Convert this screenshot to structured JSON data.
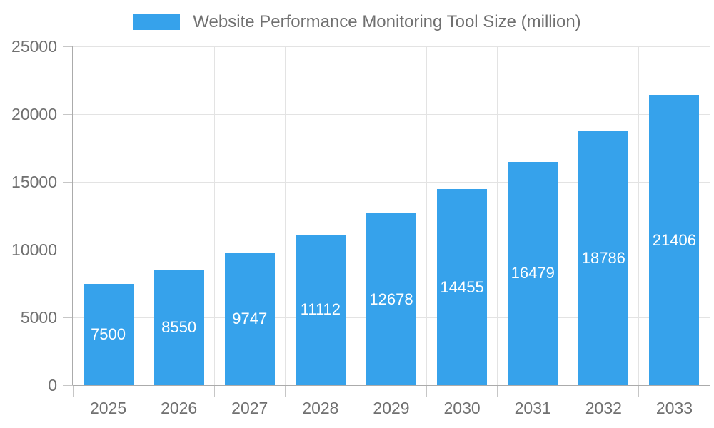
{
  "legend": {
    "label": "Website Performance Monitoring Tool Size (million)"
  },
  "chart_data": {
    "type": "bar",
    "title": "Website Performance Monitoring Tool Size (million)",
    "series_name": "Website Performance Monitoring Tool Size (million)",
    "categories": [
      "2025",
      "2026",
      "2027",
      "2028",
      "2029",
      "2030",
      "2031",
      "2032",
      "2033"
    ],
    "values": [
      7500,
      8550,
      9747,
      11112,
      12678,
      14455,
      16479,
      18786,
      21406
    ],
    "value_labels": [
      "7500",
      "8550",
      "9747",
      "11112",
      "12678",
      "14455",
      "16479",
      "18786",
      "21406"
    ],
    "xlabel": "",
    "ylabel": "",
    "ylim": [
      0,
      25000
    ],
    "yticks": [
      0,
      5000,
      10000,
      15000,
      20000,
      25000
    ],
    "ytick_labels": [
      "0",
      "5000",
      "10000",
      "15000",
      "20000",
      "25000"
    ],
    "grid": true,
    "legend_position": "top",
    "value_label_position": "inside-center",
    "colors": {
      "bar": "#36A2EB",
      "value_label": "#FFFFFF",
      "axis_line": "#ABABAB",
      "grid_line": "#E3E3E3",
      "tick_mark": "#C6C6C6",
      "tick_label": "#707070",
      "legend_text": "#707070",
      "background": "#FFFFFF"
    }
  }
}
